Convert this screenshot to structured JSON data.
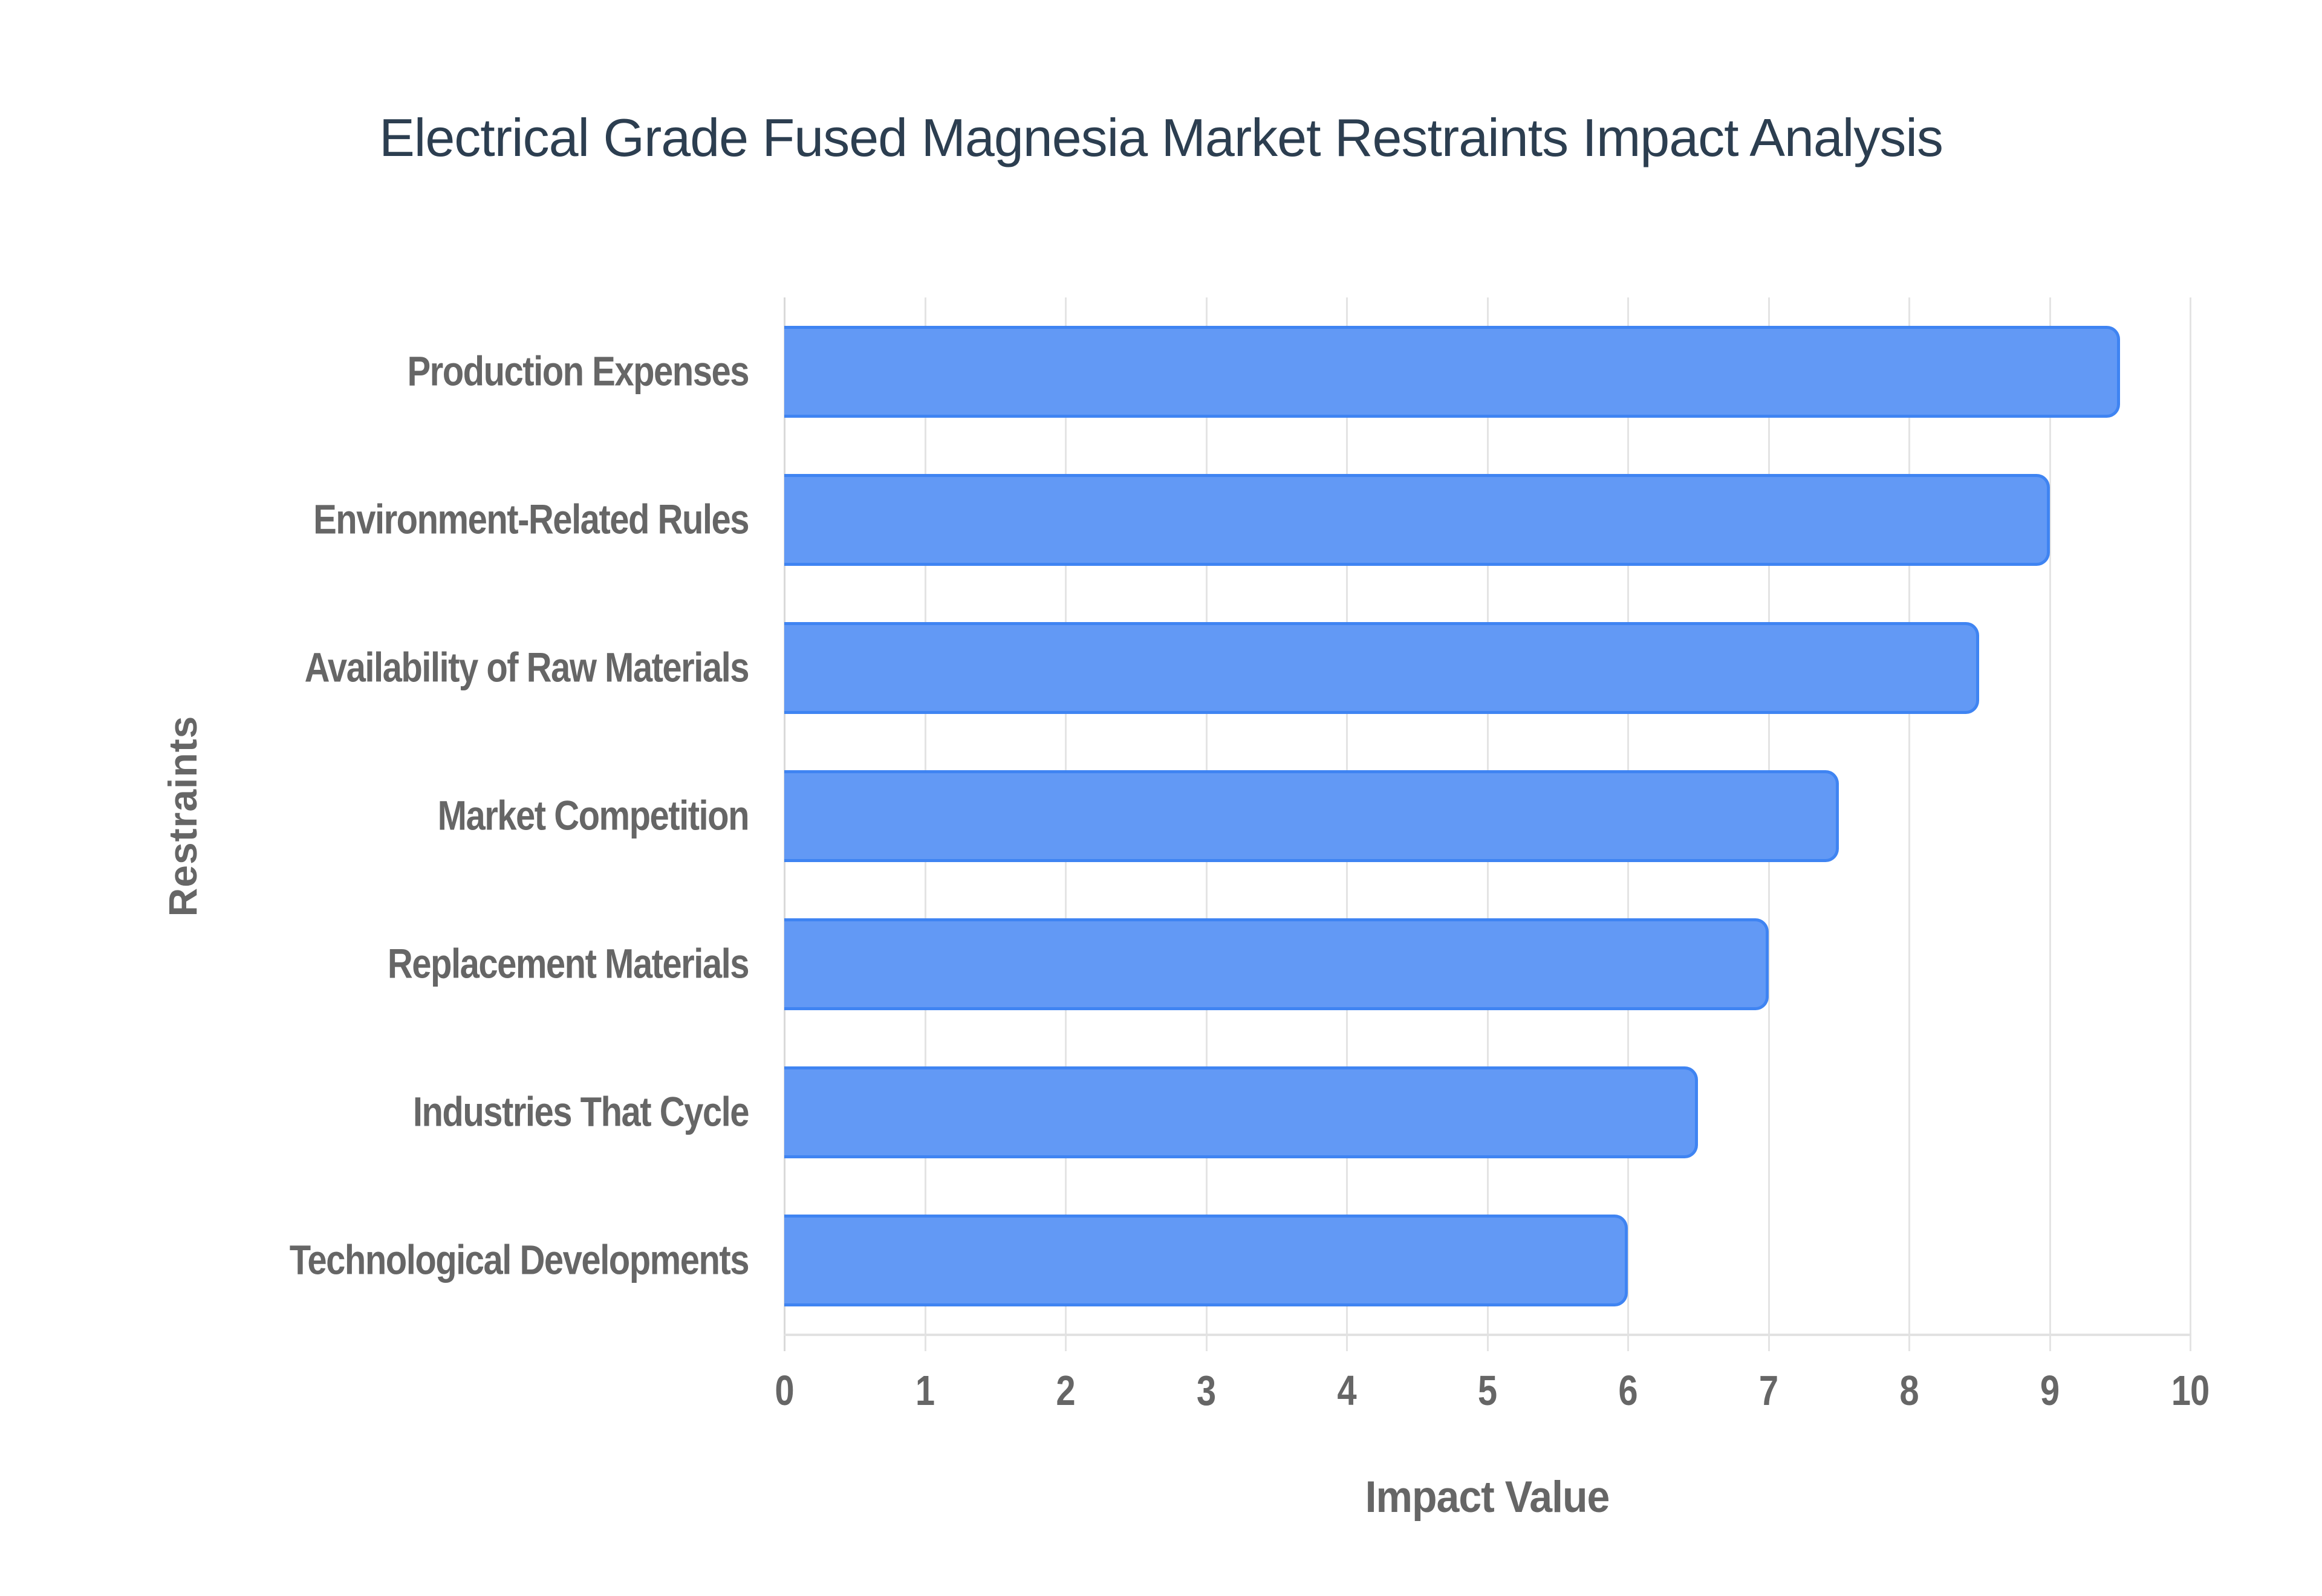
{
  "title": "Electrical Grade Fused Magnesia Market Restraints Impact Analysis",
  "colors": {
    "bar_fill": "#6299f5",
    "bar_border": "#3f84f2",
    "title": "#2c3e50",
    "axis_text": "#666666",
    "grid": "#e4e4e4"
  },
  "axes": {
    "x_title": "Impact Value",
    "y_title": "Restraints",
    "x_ticks": [
      "0",
      "1",
      "2",
      "3",
      "4",
      "5",
      "6",
      "7",
      "8",
      "9",
      "10"
    ]
  },
  "chart_data": {
    "type": "bar",
    "orientation": "horizontal",
    "title": "Electrical Grade Fused Magnesia Market Restraints Impact Analysis",
    "xlabel": "Impact Value",
    "ylabel": "Restraints",
    "xlim": [
      0,
      10
    ],
    "grid": true,
    "legend": null,
    "categories": [
      "Production Expenses",
      "Environment-Related Rules",
      "Availability of Raw Materials",
      "Market Competition",
      "Replacement Materials",
      "Industries That Cycle",
      "Technological Developments"
    ],
    "values": [
      9.5,
      9.0,
      8.5,
      7.5,
      7.0,
      6.5,
      6.0
    ]
  }
}
